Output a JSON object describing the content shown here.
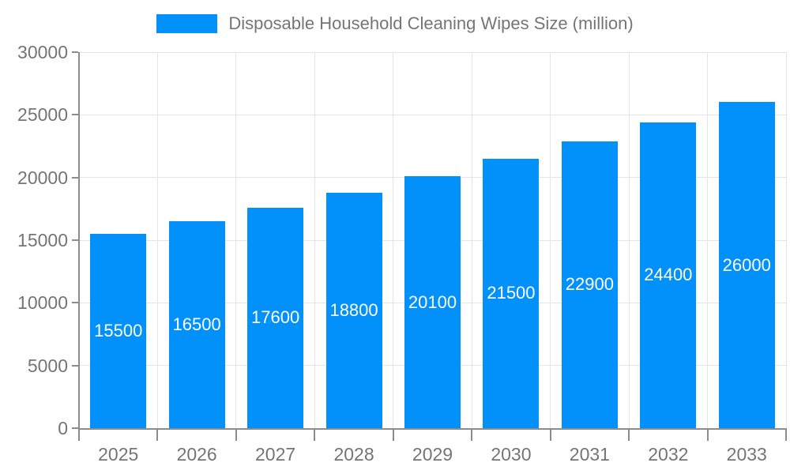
{
  "legend": {
    "label": "Disposable Household Cleaning Wipes Size (million)",
    "position": "top-center"
  },
  "colors": {
    "bar": "#0291fb",
    "bar_label": "#ffffff",
    "grid": "#e5e5e5",
    "axis": "#8c8c8c",
    "text": "#757575",
    "background": "#ffffff"
  },
  "chart_data": {
    "type": "bar",
    "title": "Disposable Household Cleaning Wipes Size (million)",
    "categories": [
      "2025",
      "2026",
      "2027",
      "2028",
      "2029",
      "2030",
      "2031",
      "2032",
      "2033"
    ],
    "values": [
      15500,
      16500,
      17600,
      18800,
      20100,
      21500,
      22900,
      24400,
      26000
    ],
    "xlabel": "",
    "ylabel": "",
    "ylim": [
      0,
      30000
    ],
    "yticks": [
      0,
      5000,
      10000,
      15000,
      20000,
      25000,
      30000
    ],
    "grid": true,
    "legend_position": "top-center",
    "bar_labels": "inside-center"
  }
}
